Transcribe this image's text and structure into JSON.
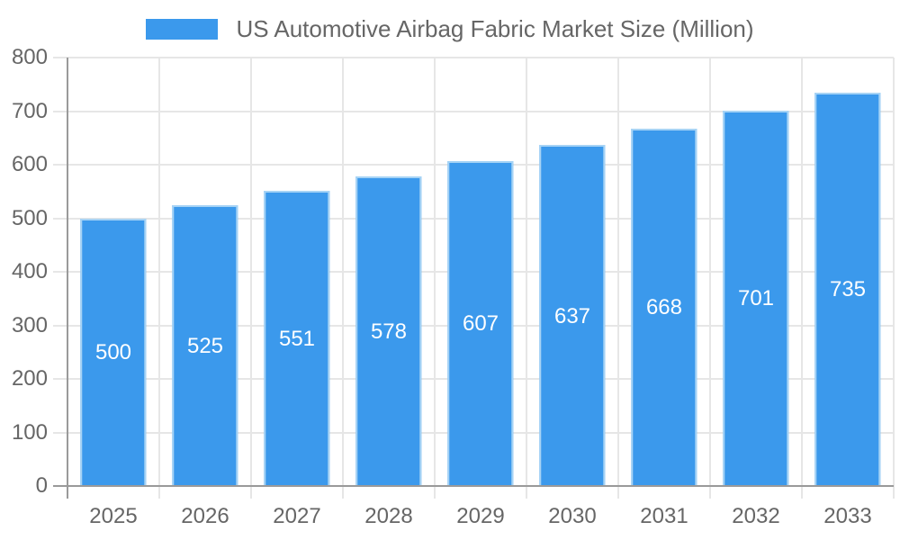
{
  "legend": {
    "label": "US Automotive Airbag Fabric Market Size (Million)"
  },
  "chart_data": {
    "type": "bar",
    "title": "US Automotive Airbag Fabric Market Size (Million)",
    "categories": [
      "2025",
      "2026",
      "2027",
      "2028",
      "2029",
      "2030",
      "2031",
      "2032",
      "2033"
    ],
    "values": [
      500,
      525,
      551,
      578,
      607,
      637,
      668,
      701,
      735
    ],
    "xlabel": "",
    "ylabel": "",
    "ylim": [
      0,
      800
    ],
    "ytick_step": 100,
    "y_tick_labels": [
      "0",
      "100",
      "200",
      "300",
      "400",
      "500",
      "600",
      "700",
      "800"
    ],
    "grid": true,
    "legend_position": "top",
    "colors": {
      "bar": "#3B99EC",
      "bar_border": "#A6D3F5",
      "value_label": "#FFFFFF",
      "axis_line": "#9A9A9A",
      "grid_line": "#E6E6E6",
      "tick_text": "#666666"
    }
  }
}
